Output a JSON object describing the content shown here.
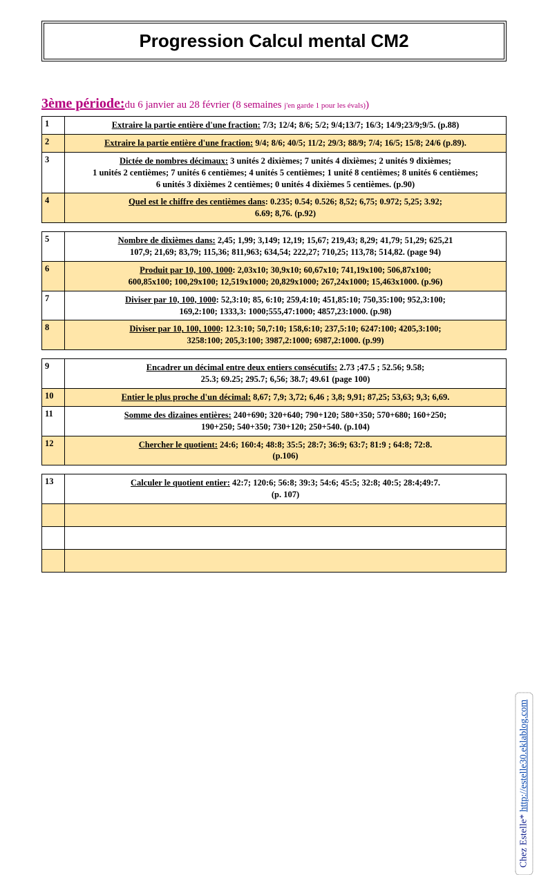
{
  "title": "Progression Calcul mental CM2",
  "period": {
    "label": "3ème période:",
    "text": "du 6 janvier au 28 février (8 semaines ",
    "small": "j'en garde 1 pour les évals)",
    "close": ")"
  },
  "colors": {
    "accent": "#b4007d",
    "altRow": "#ffe6a9",
    "link": "#0645ad"
  },
  "blocks": [
    {
      "rows": [
        {
          "n": "1",
          "alt": false,
          "u": "Extraire la partie entière d'une fraction:",
          "rest": "   7/3; 12/4; 8/6; 5/2; 9/4;13/7; 16/3; 14/9;23/9;9/5.",
          "trail": "(p.88)"
        },
        {
          "n": "2",
          "alt": true,
          "u": "Extraire la partie entière d'une fraction:",
          "rest": " 9/4; 8/6; 40/5; 11/2; 29/3; 88/9; 7/4; 16/5; 15/8; 24/6",
          "trail": "(p.89)."
        },
        {
          "n": "3",
          "alt": false,
          "u": "Dictée de nombres décimaux:",
          "rest": " 3 unités 2 dixièmes; 7 unités 4 dixièmes; 2 unités 9 dixièmes;\n1 unités 2 centièmes; 7 unités 6 centièmes; 4 unités 5 centièmes; 1 unité 8 centièmes; 8 unités 6 centièmes;\n6 unités 3 dixièmes 2 centièmes; 0 unités 4 dixièmes 5 centièmes. ",
          "trail": "(p.90)"
        },
        {
          "n": "4",
          "alt": true,
          "u": "Quel est le chiffre des centièmes dans",
          "rest": ": 0.235; 0.54; 0.526; 8,52; 6,75; 0.972;  5,25; 3.92;\n6.69; 8,76. ",
          "trail": "(p.92)"
        }
      ]
    },
    {
      "rows": [
        {
          "n": "5",
          "alt": false,
          "u": "Nombre de dixièmes dans:",
          "rest": " 2,45; 1,99; 3,149; 12,19; 15,67; 219,43; 8,29; 41,79; 51,29; 625,21\n107,9; 21,69; 83,79; 115,36; 811,963; 634,54; 222,27; 710,25; 113,78; 514,82. ",
          "trail": "(page 94)"
        },
        {
          "n": "6",
          "alt": true,
          "u": "Produit par 10, 100, 1000",
          "rest": ": 2,03x10; 30,9x10; 60,67x10; 741,19x100; 506,87x100;\n600,85x100; 100,29x100; 12,519x1000;  20,829x1000; 267,24x1000; 15,463x1000.",
          "trail": "(p.96)"
        },
        {
          "n": "7",
          "alt": false,
          "u": "Diviser par 10, 100, 1000",
          "rest": ":  52,3:10; 85, 6:10; 259,4:10; 451,85:10; 750,35:100; 952,3:100;\n169,2:100; 1333,3: 1000;555,47:1000; 4857,23:1000. ",
          "trail": "(p.98)"
        },
        {
          "n": "8",
          "alt": true,
          "u": "Diviser par 10, 100, 1000",
          "rest": ": 12.3:10; 50,7:10; 158,6:10; 237,5:10; 6247:100; 4205,3:100;\n3258:100; 205,3:100; 3987,2:1000; 6987,2:1000. ",
          "trail": "(p.99)"
        }
      ]
    },
    {
      "rows": [
        {
          "n": "9",
          "alt": false,
          "u": "Encadrer un décimal entre deux entiers consécutifs:",
          "rest": "    2.73 ;47.5 ; 52.56; 9.58;\n25.3; 69.25; 295.7; 6,56; 38.7; 49.61 ",
          "trail": "(page 100)"
        },
        {
          "n": "10",
          "alt": true,
          "u": "Entier le plus proche d'un décimal:",
          "rest": "  8,67; 7,9; 3,72; 6,46 ; 3,8; 9,91; 87,25; 53,63; 9,3; 6,69.",
          "trail": ""
        },
        {
          "n": "11",
          "alt": false,
          "u": "Somme des dizaines entières:",
          "rest": " 240+690; 320+640; 790+120; 580+350; 570+680; 160+250;\n190+250; 540+350; 730+120; 250+540. ",
          "trail": "(p.104)"
        },
        {
          "n": "12",
          "alt": true,
          "u": "Chercher le quotient:",
          "rest": " 24:6; 160:4; 48:8; 35:5; 28:7; 36:9; 63:7; 81:9 ; 64:8; 72:8. ",
          "trail": "(p.106)"
        }
      ]
    },
    {
      "rows": [
        {
          "n": "13",
          "alt": false,
          "u": "Calculer le quotient entier:",
          "rest": "  42:7; 120:6; 56:8; 39:3; 54:6; 45:5; 32:8; 40:5; 28:4;49:7.",
          "trail": "(p. 107)"
        },
        {
          "n": "",
          "alt": true,
          "empty": true
        },
        {
          "n": "",
          "alt": false,
          "empty": true
        },
        {
          "n": "",
          "alt": true,
          "empty": true
        }
      ]
    }
  ],
  "watermark": {
    "prefix": "Chez Estelle* ",
    "link": "http://estelle30.eklablog.com"
  }
}
